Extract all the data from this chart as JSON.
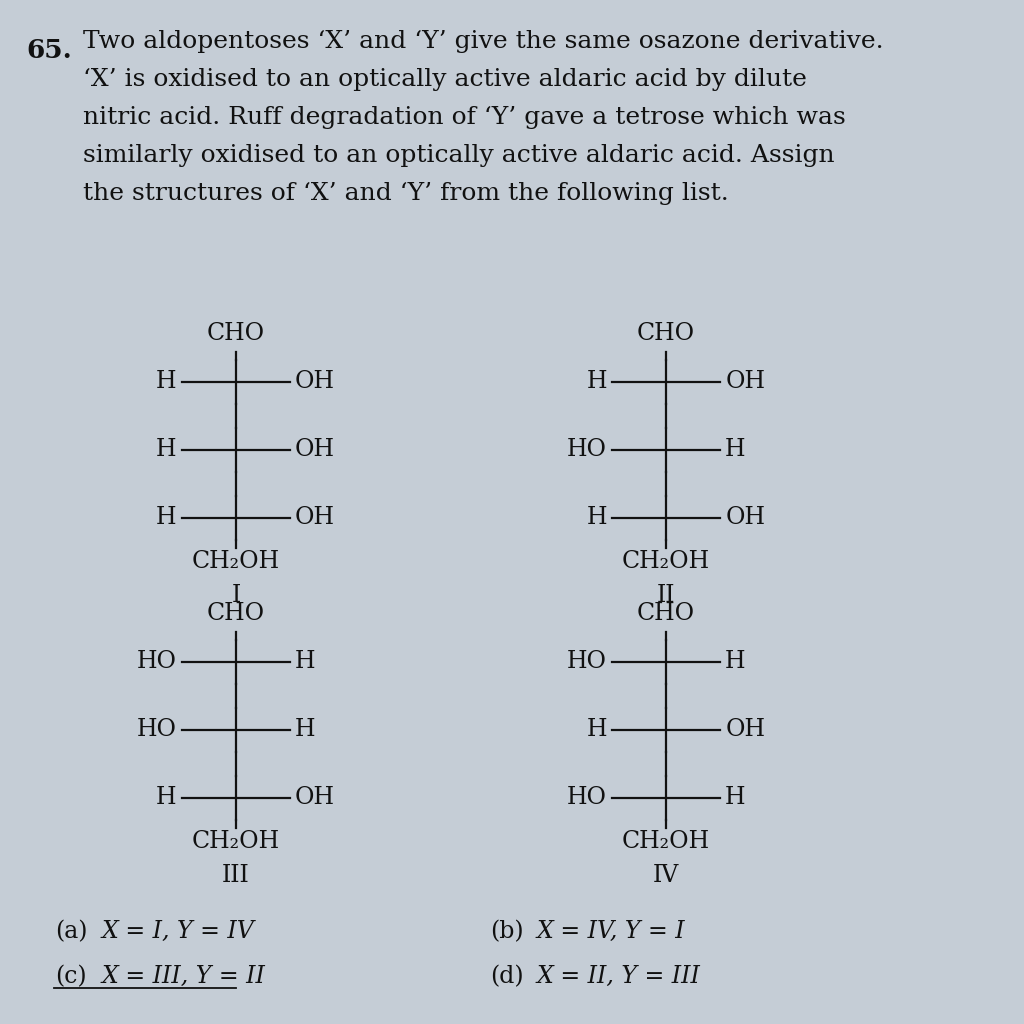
{
  "background_color": "#c5cdd6",
  "text_color": "#111111",
  "question_number": "65.",
  "question_text_lines": [
    "Two aldopentoses ‘X’ and ‘Y’ give the same osazone derivative.",
    "‘X’ is oxidised to an optically active aldaric acid by dilute",
    "nitric acid. Ruff degradation of ‘Y’ gave a tetrose which was",
    "similarly oxidised to an optically active aldaric acid. Assign",
    "the structures of ‘X’ and ‘Y’ from the following list."
  ],
  "structures": {
    "I": {
      "top_label": "CHO",
      "rows": [
        {
          "left": "H",
          "right": "OH"
        },
        {
          "left": "H",
          "right": "OH"
        },
        {
          "left": "H",
          "right": "OH"
        }
      ],
      "bottom_label": "CH₂OH",
      "numeral": "I"
    },
    "II": {
      "top_label": "CHO",
      "rows": [
        {
          "left": "H",
          "right": "OH"
        },
        {
          "left": "HO",
          "right": "H"
        },
        {
          "left": "H",
          "right": "OH"
        }
      ],
      "bottom_label": "CH₂OH",
      "numeral": "II"
    },
    "III": {
      "top_label": "CHO",
      "rows": [
        {
          "left": "HO",
          "right": "H"
        },
        {
          "left": "HO",
          "right": "H"
        },
        {
          "left": "H",
          "right": "OH"
        }
      ],
      "bottom_label": "CH₂OH",
      "numeral": "III"
    },
    "IV": {
      "top_label": "CHO",
      "rows": [
        {
          "left": "HO",
          "right": "H"
        },
        {
          "left": "H",
          "right": "OH"
        },
        {
          "left": "HO",
          "right": "H"
        }
      ],
      "bottom_label": "CH₂OH",
      "numeral": "IV"
    }
  },
  "struct_order": [
    "I",
    "II",
    "III",
    "IV"
  ],
  "answers": [
    {
      "label": "(a)",
      "text": "X = I, Y = IV"
    },
    {
      "label": "(b)",
      "text": "X = IV, Y = I"
    },
    {
      "label": "(c)",
      "text": "X = III, Y = II",
      "underline": true
    },
    {
      "label": "(d)",
      "text": "X = II, Y = III"
    }
  ],
  "fs_question": 19,
  "fs_struct": 17,
  "fs_answer": 17
}
